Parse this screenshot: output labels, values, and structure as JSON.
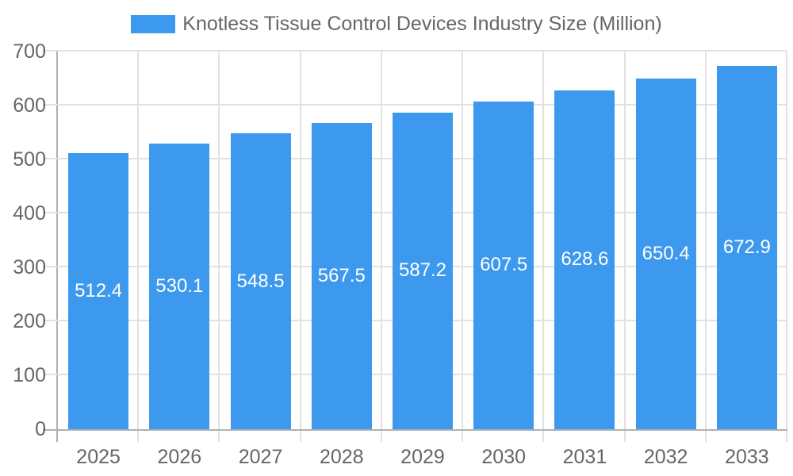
{
  "legend": {
    "label": "Knotless Tissue Control Devices Industry Size (Million)",
    "swatch_color": "#3d99ee"
  },
  "chart_data": {
    "type": "bar",
    "title": "Knotless Tissue Control Devices Industry Size (Million)",
    "categories": [
      "2025",
      "2026",
      "2027",
      "2028",
      "2029",
      "2030",
      "2031",
      "2032",
      "2033"
    ],
    "values": [
      512.4,
      530.1,
      548.5,
      567.5,
      587.2,
      607.5,
      628.6,
      650.4,
      672.9
    ],
    "value_labels": [
      "512.4",
      "530.1",
      "548.5",
      "567.5",
      "587.2",
      "607.5",
      "628.6",
      "650.4",
      "672.9"
    ],
    "xlabel": "",
    "ylabel": "",
    "ylim": [
      0,
      700
    ],
    "yticks": [
      0,
      100,
      200,
      300,
      400,
      500,
      600,
      700
    ],
    "grid": true,
    "legend_position": "top-center",
    "value_label_position": "center-of-bar"
  },
  "colors": {
    "bar": "#3d99ee",
    "grid": "#e2e2e2",
    "axis": "#b0b0b0",
    "text": "#666666",
    "value_label": "#ffffff",
    "background": "#ffffff"
  }
}
